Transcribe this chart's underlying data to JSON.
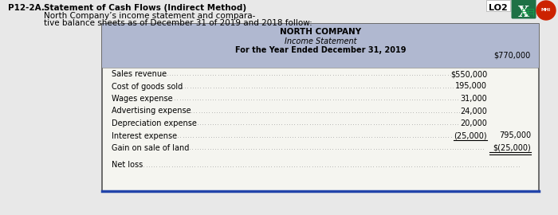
{
  "problem_label": "P12-2A.",
  "problem_title": "Statement of Cash Flows (Indirect Method)",
  "problem_desc1": "North Company’s income statement and compara-",
  "problem_desc2": "tive balance sheets as of December 31 of 2019 and 2018 follow:",
  "lo_label": "LO2",
  "company_name": "NORTH COMPANY",
  "statement_title": "Income Statement",
  "statement_period": "For the Year Ended December 31, 2019",
  "revenue_header": "$770,000",
  "line_items": [
    {
      "label": "Sales revenue",
      "col1": "$550,000",
      "col2": ""
    },
    {
      "label": "Cost of goods sold",
      "col1": "195,000",
      "col2": ""
    },
    {
      "label": "Wages expense",
      "col1": "31,000",
      "col2": ""
    },
    {
      "label": "Advertising expense",
      "col1": "24,000",
      "col2": ""
    },
    {
      "label": "Depreciation expense",
      "col1": "20,000",
      "col2": ""
    },
    {
      "label": "Interest expense",
      "col1": "(25,000)",
      "col2": "795,000"
    },
    {
      "label": "Gain on sale of land",
      "col1": "",
      "col2": "$(25,000)"
    }
  ],
  "net_loss_label": "Net loss",
  "outer_bg": "#c8c8c8",
  "page_bg": "#e8e8e8",
  "header_bg": "#b0b8d0",
  "table_bg": "#f5f5f0",
  "border_color": "#555555"
}
